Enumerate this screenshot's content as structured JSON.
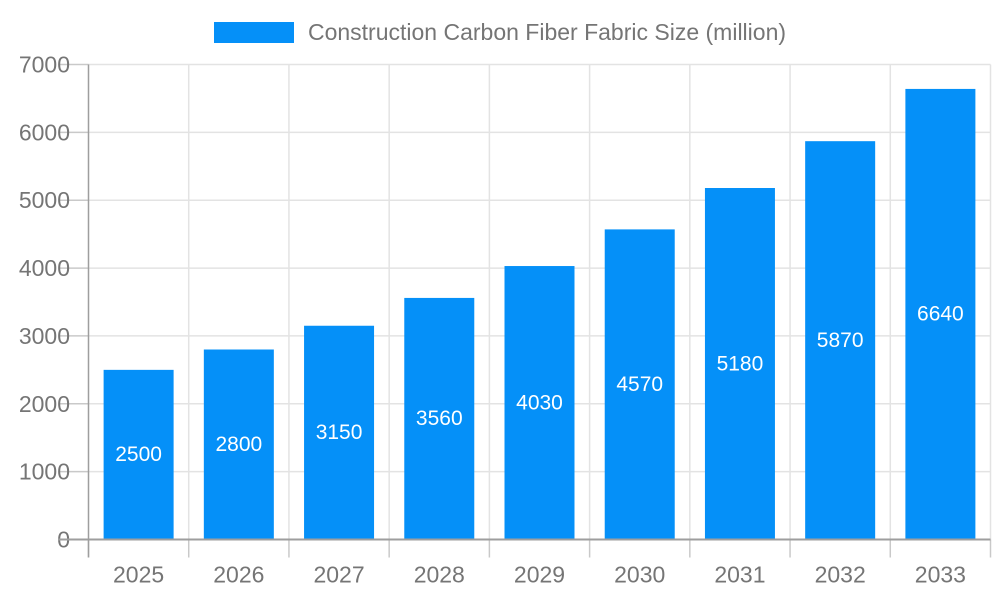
{
  "chart_data": {
    "type": "bar",
    "title": "Construction Carbon Fiber Fabric Size (million)",
    "categories": [
      "2025",
      "2026",
      "2027",
      "2028",
      "2029",
      "2030",
      "2031",
      "2032",
      "2033"
    ],
    "values": [
      2500,
      2800,
      3150,
      3560,
      4030,
      4570,
      5180,
      5870,
      6640
    ],
    "xlabel": "",
    "ylabel": "",
    "ylim": [
      0,
      7000
    ],
    "ytick_interval": 1000,
    "grid": true,
    "legend_position": "top",
    "colors": {
      "bar": "#0590f8",
      "bar_value_label": "#ffffff",
      "axis_text": "#757575",
      "grid_line": "#e3e3e3",
      "axis_line": "#9e9e9e",
      "tick_line": "#c9c9c9",
      "background": "#ffffff"
    }
  }
}
